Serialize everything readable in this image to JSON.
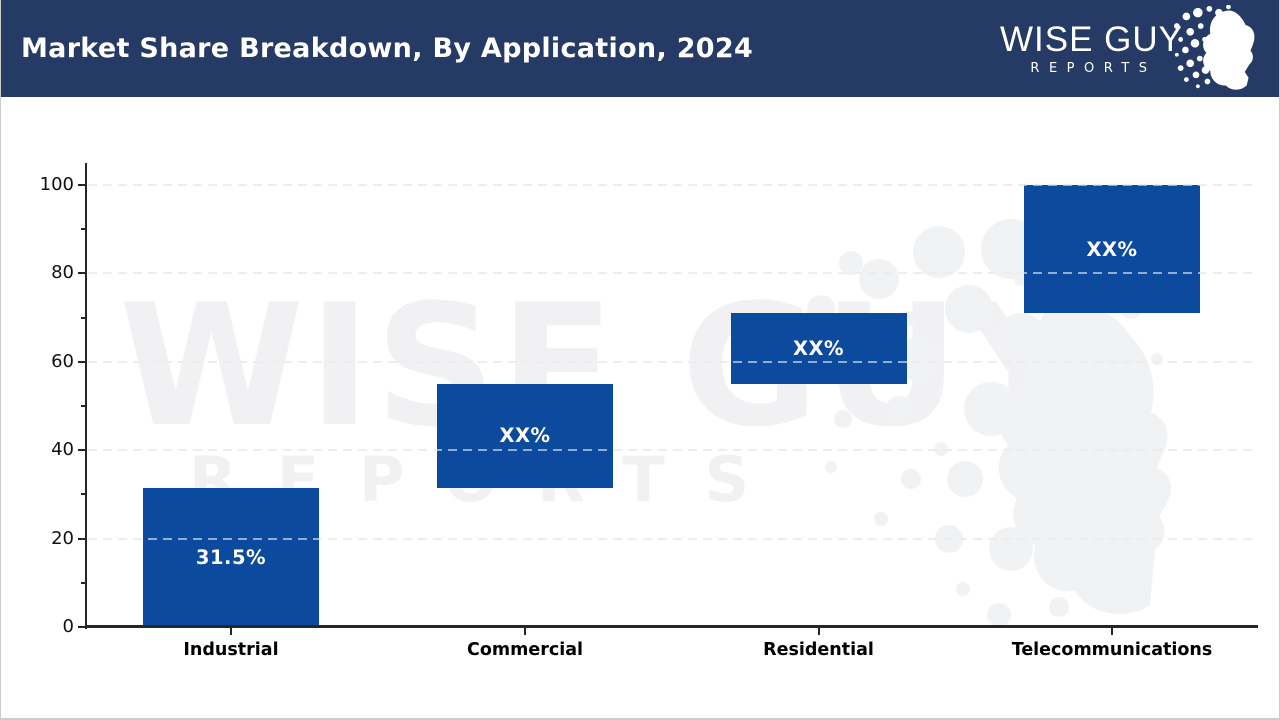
{
  "header": {
    "title": "Market Share Breakdown, By Application, 2024",
    "logo": {
      "primary": "WISE GUY",
      "secondary": "REPORTS"
    }
  },
  "watermark": {
    "primary": "WISE GUY",
    "secondary": "REPORTS"
  },
  "colors": {
    "header_bg": "#253a64",
    "bar": "#0c4a9e",
    "bar_label": "#ffffff",
    "grid": "#d7d7d7",
    "axis": "#262626",
    "tick_label": "#111111",
    "watermark": "#f1f1f3"
  },
  "chart_data": {
    "type": "bar",
    "variant": "waterfall-floating-bars",
    "title": "Market Share Breakdown, By Application, 2024",
    "categories": [
      "Industrial",
      "Commercial",
      "Residential",
      "Telecommunications"
    ],
    "segments": [
      {
        "category": "Industrial",
        "start": 0,
        "end": 31.5,
        "label": "31.5%"
      },
      {
        "category": "Commercial",
        "start": 31.5,
        "end": 55,
        "label": "XX%"
      },
      {
        "category": "Residential",
        "start": 55,
        "end": 71,
        "label": "XX%"
      },
      {
        "category": "Telecommunications",
        "start": 71,
        "end": 100,
        "label": "XX%"
      }
    ],
    "ylim": [
      0,
      100
    ],
    "yticks": [
      0,
      20,
      40,
      60,
      80,
      100
    ],
    "minor_yticks": [
      10,
      30,
      50,
      70,
      90
    ],
    "xlabel": "",
    "ylabel": "",
    "grid": "horizontal-dashed-over-bars",
    "legend": "none"
  }
}
